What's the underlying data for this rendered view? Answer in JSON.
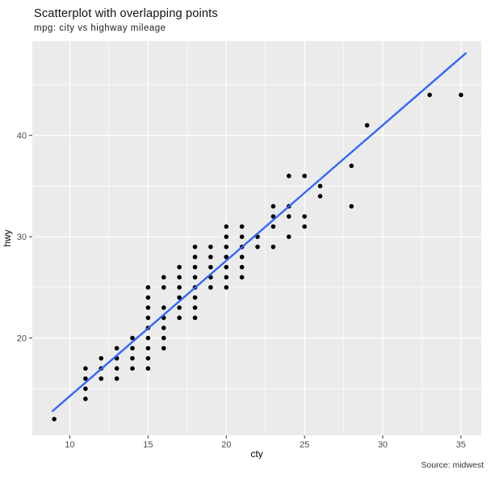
{
  "chart_data": {
    "type": "scatter",
    "title": "Scatterplot with overlapping points",
    "subtitle": "mpg: city vs highway mileage",
    "caption": "Source: midwest",
    "xlabel": "cty",
    "ylabel": "hwy",
    "xlim": [
      7.6,
      36.3
    ],
    "ylim": [
      10.4,
      49.3
    ],
    "x_ticks": [
      10,
      15,
      20,
      25,
      30,
      35
    ],
    "y_ticks": [
      20,
      30,
      40
    ],
    "x_minor": [
      12.5,
      17.5,
      22.5,
      27.5,
      32.5
    ],
    "y_minor": [
      15,
      25,
      35,
      45
    ],
    "grid": true,
    "legend": "none",
    "points": [
      [
        9,
        12
      ],
      [
        11,
        14
      ],
      [
        11,
        15
      ],
      [
        11,
        16
      ],
      [
        11,
        17
      ],
      [
        12,
        16
      ],
      [
        12,
        17
      ],
      [
        12,
        18
      ],
      [
        13,
        16
      ],
      [
        13,
        17
      ],
      [
        13,
        18
      ],
      [
        13,
        19
      ],
      [
        14,
        17
      ],
      [
        14,
        18
      ],
      [
        14,
        19
      ],
      [
        14,
        20
      ],
      [
        15,
        17
      ],
      [
        15,
        18
      ],
      [
        15,
        19
      ],
      [
        15,
        20
      ],
      [
        15,
        21
      ],
      [
        15,
        22
      ],
      [
        15,
        23
      ],
      [
        15,
        24
      ],
      [
        15,
        25
      ],
      [
        16,
        19
      ],
      [
        16,
        20
      ],
      [
        16,
        21
      ],
      [
        16,
        22
      ],
      [
        16,
        23
      ],
      [
        16,
        25
      ],
      [
        16,
        26
      ],
      [
        17,
        22
      ],
      [
        17,
        23
      ],
      [
        17,
        24
      ],
      [
        17,
        25
      ],
      [
        17,
        26
      ],
      [
        17,
        27
      ],
      [
        18,
        22
      ],
      [
        18,
        23
      ],
      [
        18,
        24
      ],
      [
        18,
        25
      ],
      [
        18,
        26
      ],
      [
        18,
        27
      ],
      [
        18,
        28
      ],
      [
        18,
        29
      ],
      [
        19,
        25
      ],
      [
        19,
        26
      ],
      [
        19,
        27
      ],
      [
        19,
        28
      ],
      [
        19,
        29
      ],
      [
        20,
        25
      ],
      [
        20,
        26
      ],
      [
        20,
        27
      ],
      [
        20,
        28
      ],
      [
        20,
        29
      ],
      [
        20,
        30
      ],
      [
        20,
        31
      ],
      [
        21,
        26
      ],
      [
        21,
        27
      ],
      [
        21,
        28
      ],
      [
        21,
        29
      ],
      [
        21,
        30
      ],
      [
        21,
        31
      ],
      [
        22,
        29
      ],
      [
        22,
        30
      ],
      [
        23,
        29
      ],
      [
        23,
        31
      ],
      [
        23,
        32
      ],
      [
        23,
        33
      ],
      [
        24,
        30
      ],
      [
        24,
        32
      ],
      [
        24,
        33
      ],
      [
        24,
        36
      ],
      [
        25,
        31
      ],
      [
        25,
        32
      ],
      [
        25,
        36
      ],
      [
        26,
        34
      ],
      [
        26,
        35
      ],
      [
        28,
        33
      ],
      [
        28,
        37
      ],
      [
        29,
        41
      ],
      [
        33,
        44
      ],
      [
        35,
        44
      ]
    ],
    "trend_line": {
      "type": "linear",
      "x1": 8.9,
      "y1": 12.8,
      "x2": 35.3,
      "y2": 48.1
    },
    "colors": {
      "panel": "#EBEBEB",
      "grid": "#FFFFFF",
      "point": "#000000",
      "trend": "#3366FF",
      "tick": "#333333",
      "tick_label": "#4D4D4D",
      "axis_title": "#000000"
    }
  }
}
